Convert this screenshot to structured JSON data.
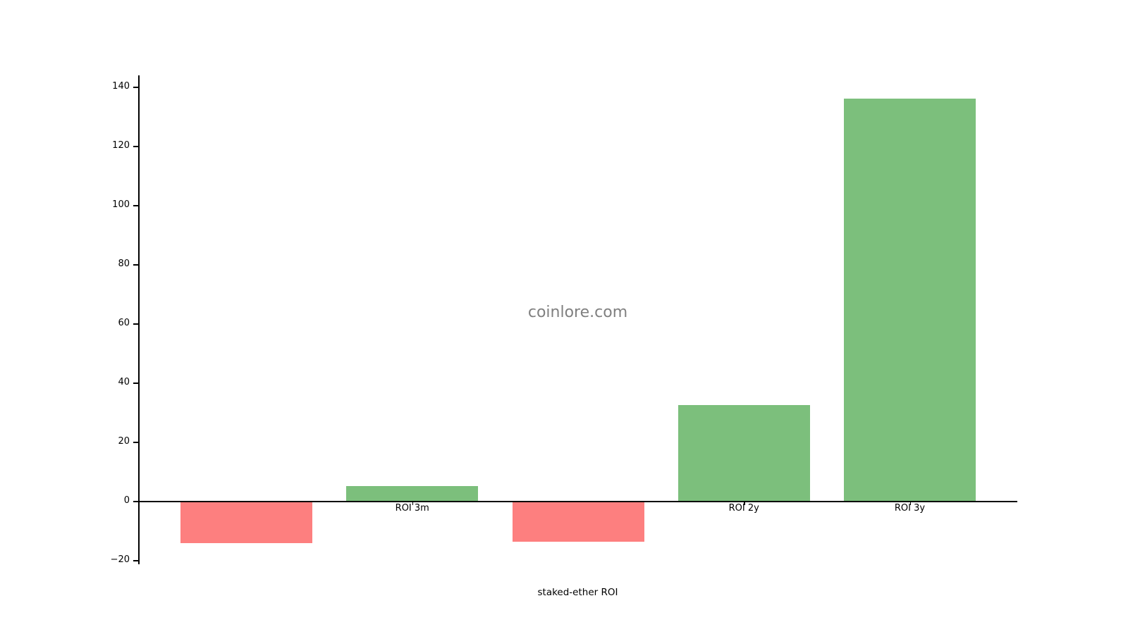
{
  "chart_data": {
    "type": "bar",
    "title": "",
    "xlabel": "staked-ether ROI",
    "ylabel": "",
    "watermark": "coinlore.com",
    "categories": [
      "",
      "ROI 3m",
      "",
      "ROI 2y",
      "ROI 3y"
    ],
    "values": [
      -14,
      5,
      -13.5,
      32.5,
      136
    ],
    "yticks": [
      140,
      120,
      100,
      80,
      60,
      40,
      20,
      0,
      -20
    ],
    "ylim": [
      -21.5,
      143.8
    ],
    "positive_color": "#7cbf7c",
    "negative_color": "#fd7f7f",
    "axis_color": "#000000",
    "watermark_color": "#808080",
    "grid": false,
    "legend_position": "none"
  }
}
